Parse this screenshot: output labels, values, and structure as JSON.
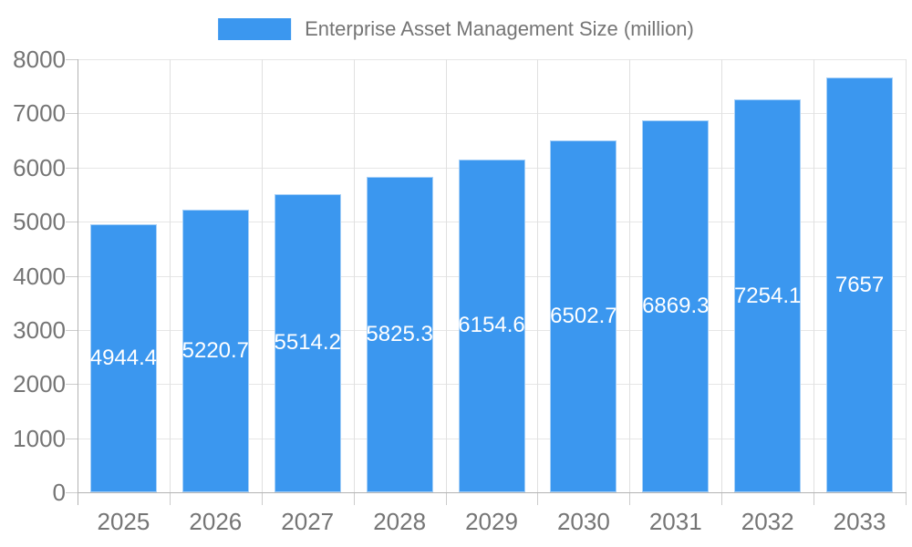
{
  "legend": {
    "label": "Enterprise Asset Management Size (million)"
  },
  "chart_data": {
    "type": "bar",
    "title": "Enterprise Asset Management Size (million)",
    "categories": [
      "2025",
      "2026",
      "2027",
      "2028",
      "2029",
      "2030",
      "2031",
      "2032",
      "2033"
    ],
    "values": [
      4944.4,
      5220.7,
      5514.2,
      5825.3,
      6154.6,
      6502.7,
      6869.3,
      7254.1,
      7657
    ],
    "value_labels": [
      "4944.4",
      "5220.7",
      "5514.2",
      "5825.3",
      "6154.6",
      "6502.7",
      "6869.3",
      "7254.1",
      "7657"
    ],
    "series_name": "Enterprise Asset Management Size (million)",
    "xlabel": "",
    "ylabel": "",
    "ylim": [
      0,
      8000
    ],
    "y_ticks": [
      0,
      1000,
      2000,
      3000,
      4000,
      5000,
      6000,
      7000,
      8000
    ],
    "grid": true,
    "legend_position": "top-center",
    "value_labels_position": "inside-center"
  },
  "colors": {
    "bar": "#3B97EF",
    "bar_edge": "rgba(255,255,255,0.55)",
    "grid_horizontal": "#e6e6e6",
    "grid_vertical": "#e0e0e0",
    "tick": "#cccccc",
    "axis_line": "#b3b3b3",
    "axis_text": "#757575",
    "value_text": "#ffffff",
    "background": "#ffffff"
  }
}
